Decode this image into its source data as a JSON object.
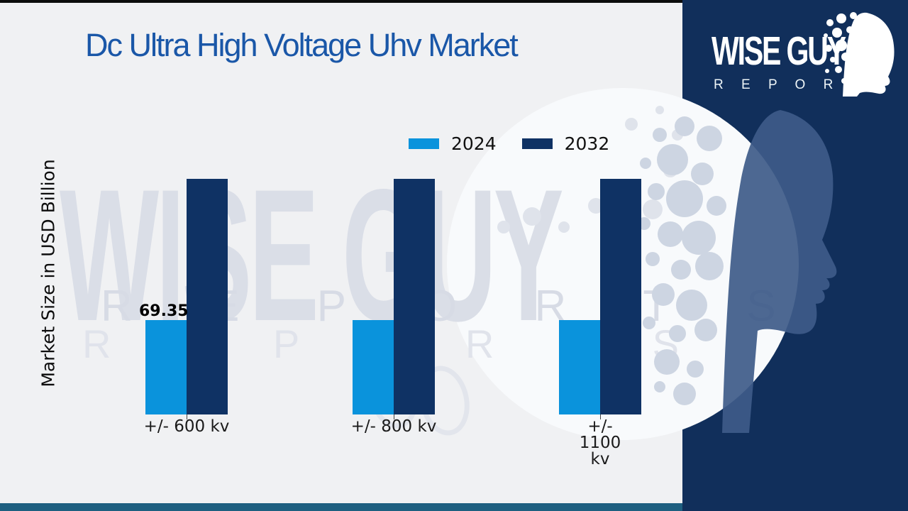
{
  "page": {
    "title": "Dc Ultra High Voltage Uhv Market"
  },
  "logo": {
    "name": "WISE GUY",
    "sub": "R E P O R T S"
  },
  "watermark": {
    "line1": "WISE GUY",
    "line2": "R E P O R T S",
    "line3": "R E P O R T S"
  },
  "chart_data": {
    "type": "bar",
    "title": "Dc Ultra High Voltage Uhv Market",
    "ylabel": "Market Size in USD Billion",
    "xlabel": "",
    "categories": [
      "+/- 600 kv",
      "+/- 800 kv",
      "+/- 1100 kv"
    ],
    "series": [
      {
        "name": "2024",
        "color": "#0a93dc",
        "values": [
          69.35,
          69.35,
          69.35
        ]
      },
      {
        "name": "2032",
        "color": "#0f3264",
        "values": [
          173,
          173,
          173
        ]
      }
    ],
    "value_labels": [
      {
        "series": "2024",
        "category": "+/- 600 kv",
        "text": "69.35"
      }
    ],
    "legend_position": "top",
    "grid": false,
    "y_axis_ticks_visible": false,
    "ylim": [
      0,
      180
    ]
  },
  "colors": {
    "background": "#f0f1f3",
    "bar_2024": "#0a93dc",
    "bar_2032": "#0f3264",
    "brand_panel": "#112f5b",
    "title_blue": "#1a57a8",
    "footer_teal": "#1e5f80",
    "top_strip": "#0c0c0c",
    "watermark": "#dadee7",
    "decor_dots": "#cdd5e2",
    "face_silhouette": "#3e5b89"
  }
}
